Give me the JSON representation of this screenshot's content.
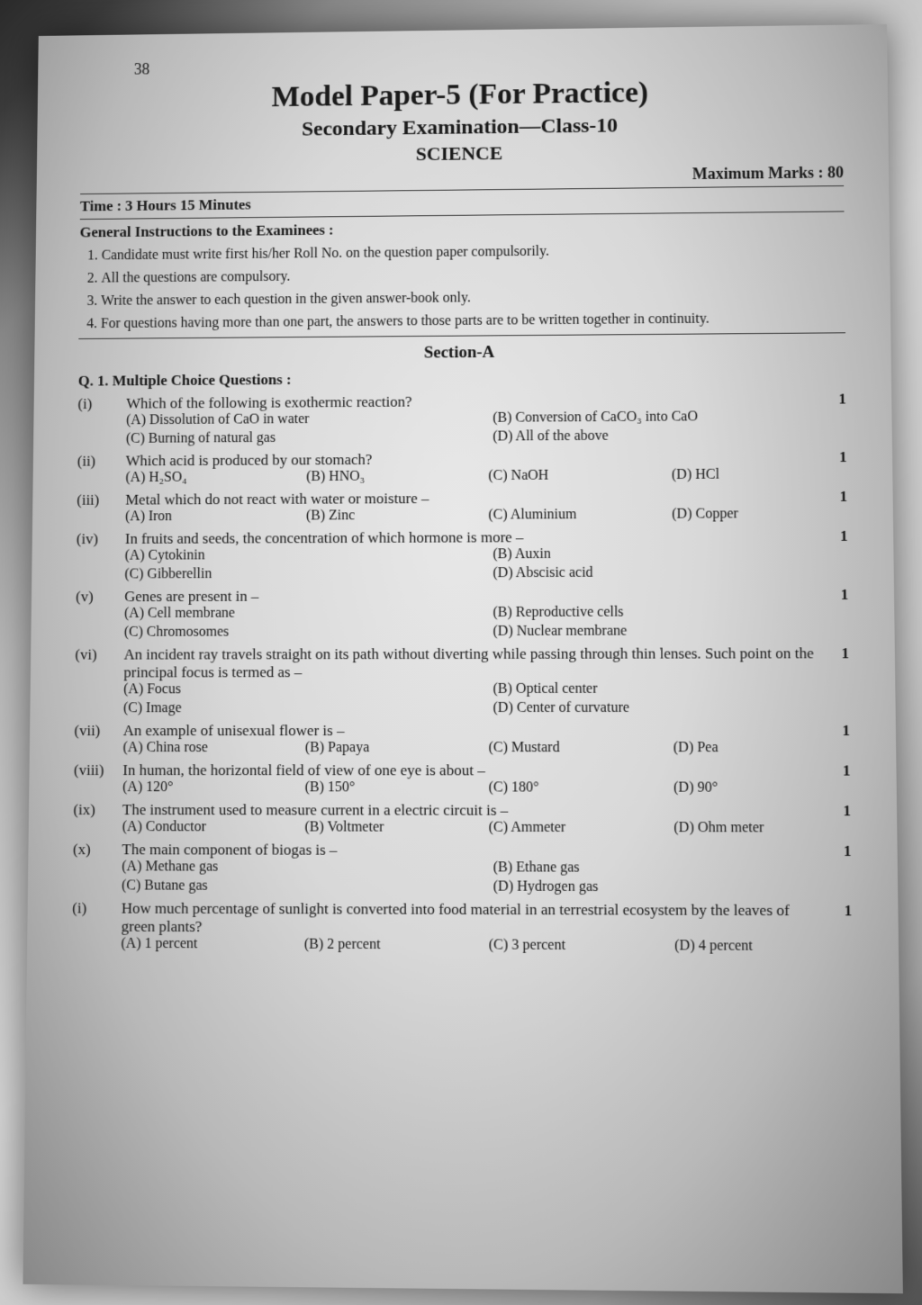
{
  "pageNumber": "38",
  "title": "Model Paper-5 (For Practice)",
  "subtitle": "Secondary Examination—Class-10",
  "subject": "SCIENCE",
  "maxMarks": "Maximum Marks : 80",
  "time": "Time : 3 Hours 15 Minutes",
  "instructionsHead": "General Instructions to the Examinees :",
  "instructions": [
    "Candidate must write first his/her Roll No. on the question paper compulsorily.",
    "All the questions are compulsory.",
    "Write the answer to each question in the given answer-book only.",
    "For questions having more than one part, the answers to those parts are to be written together in continuity."
  ],
  "sectionA": "Section-A",
  "q1head": "Q. 1. Multiple Choice Questions :",
  "questions": [
    {
      "num": "(i)",
      "text": "Which of the following is exothermic reaction?",
      "mark": "1",
      "layout": "2col",
      "opts": {
        "A": "(A) Dissolution of CaO in water",
        "B": "(B) Conversion of CaCO₃ into CaO",
        "C": "(C) Burning of natural gas",
        "D": "(D) All of the above"
      }
    },
    {
      "num": "(ii)",
      "text": "Which acid is produced by our stomach?",
      "mark": "1",
      "layout": "4col",
      "opts": {
        "A": "(A) H₂SO₄",
        "B": "(B) HNO₃",
        "C": "(C) NaOH",
        "D": "(D) HCl"
      }
    },
    {
      "num": "(iii)",
      "text": "Metal which do not react with water or moisture –",
      "mark": "1",
      "layout": "4col",
      "opts": {
        "A": "(A) Iron",
        "B": "(B) Zinc",
        "C": "(C) Aluminium",
        "D": "(D) Copper"
      }
    },
    {
      "num": "(iv)",
      "text": "In fruits and seeds, the concentration of which hormone is more –",
      "mark": "1",
      "layout": "2col",
      "opts": {
        "A": "(A) Cytokinin",
        "B": "(B) Auxin",
        "C": "(C) Gibberellin",
        "D": "(D) Abscisic acid"
      }
    },
    {
      "num": "(v)",
      "text": "Genes are present in –",
      "mark": "1",
      "layout": "2col",
      "opts": {
        "A": "(A) Cell membrane",
        "B": "(B) Reproductive cells",
        "C": "(C) Chromosomes",
        "D": "(D) Nuclear membrane"
      }
    },
    {
      "num": "(vi)",
      "text": "An incident ray travels straight on its path without diverting while passing through thin lenses. Such point on the principal focus is termed as –",
      "mark": "1",
      "layout": "2col",
      "opts": {
        "A": "(A) Focus",
        "B": "(B) Optical center",
        "C": "(C) Image",
        "D": "(D) Center of curvature"
      }
    },
    {
      "num": "(vii)",
      "text": "An example of unisexual flower is –",
      "mark": "1",
      "layout": "4col",
      "opts": {
        "A": "(A) China rose",
        "B": "(B) Papaya",
        "C": "(C) Mustard",
        "D": "(D) Pea"
      }
    },
    {
      "num": "(viii)",
      "text": "In human, the horizontal field of view of one eye is about –",
      "mark": "1",
      "layout": "4col",
      "opts": {
        "A": "(A) 120°",
        "B": "(B) 150°",
        "C": "(C) 180°",
        "D": "(D) 90°"
      }
    },
    {
      "num": "(ix)",
      "text": "The instrument used to measure current in a electric circuit is –",
      "mark": "1",
      "layout": "4col",
      "opts": {
        "A": "(A) Conductor",
        "B": "(B) Voltmeter",
        "C": "(C) Ammeter",
        "D": "(D) Ohm meter"
      }
    },
    {
      "num": "(x)",
      "text": "The main component of biogas is –",
      "mark": "1",
      "layout": "2col",
      "opts": {
        "A": "(A) Methane gas",
        "B": "(B) Ethane gas",
        "C": "(C) Butane gas",
        "D": "(D) Hydrogen gas"
      }
    },
    {
      "num": "(i)",
      "text": "How much percentage of sunlight is converted into food material in an terrestrial ecosystem by the leaves of green plants?",
      "mark": "1",
      "layout": "4col",
      "opts": {
        "A": "(A) 1 percent",
        "B": "(B) 2 percent",
        "C": "(C) 3 percent",
        "D": "(D) 4 percent"
      }
    }
  ]
}
